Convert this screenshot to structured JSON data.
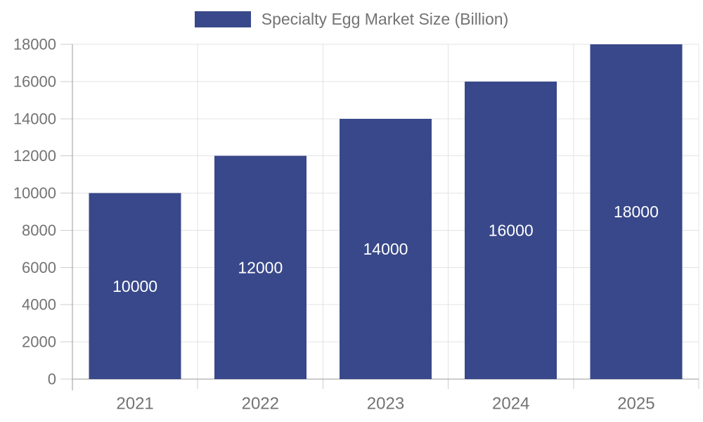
{
  "chart_data": {
    "type": "bar",
    "title": "Specialty Egg Market Size (Billion)",
    "categories": [
      "2021",
      "2022",
      "2023",
      "2024",
      "2025"
    ],
    "values": [
      10000,
      12000,
      14000,
      16000,
      18000
    ],
    "xlabel": "",
    "ylabel": "",
    "ylim": [
      0,
      18000
    ],
    "ytick_step": 2000,
    "ytick_labels": [
      "0",
      "2000",
      "4000",
      "6000",
      "8000",
      "10000",
      "12000",
      "14000",
      "16000",
      "18000"
    ],
    "bar_value_labels": [
      "10000",
      "12000",
      "14000",
      "16000",
      "18000"
    ],
    "grid": true,
    "legend_position": "top",
    "colors": {
      "bar": "#38488A",
      "bar_label": "#FFFFFF",
      "grid_line": "#E3E3E3",
      "axis_line": "#9A9A9A",
      "tick_mark": "#CCCCCC",
      "tick_label": "#737373",
      "legend_text": "#737373",
      "background": "#FFFFFF"
    }
  }
}
